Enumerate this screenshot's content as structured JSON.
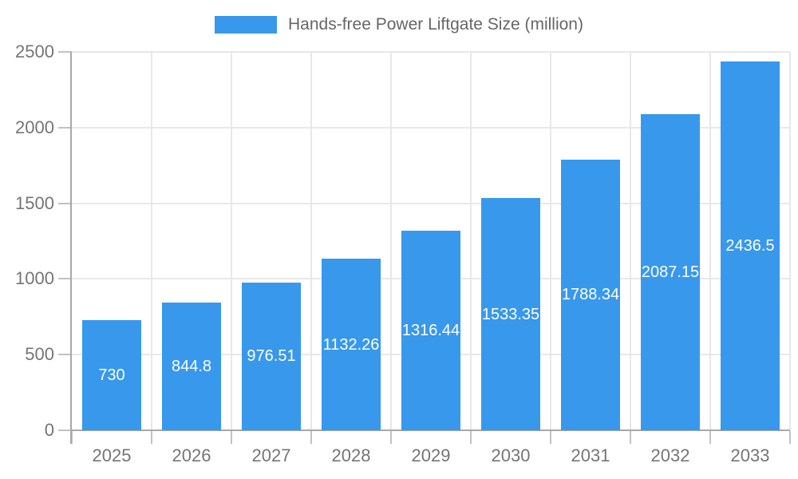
{
  "legend": {
    "label": "Hands-free Power Liftgate Size (million)"
  },
  "colors": {
    "background": "#ffffff",
    "bar": "#3898ec",
    "grid": "#e8e8e8",
    "tick": "#c2c2c2",
    "axis_line": "#a8a8a8",
    "axis_text": "#757575",
    "legend_text": "#666666",
    "bar_label_text": "#ffffff"
  },
  "chart_data": {
    "type": "bar",
    "title": "Hands-free Power Liftgate Size (million)",
    "series_name": "Hands-free Power Liftgate Size (million)",
    "categories": [
      "2025",
      "2026",
      "2027",
      "2028",
      "2029",
      "2030",
      "2031",
      "2032",
      "2033"
    ],
    "values": [
      730,
      844.8,
      976.51,
      1132.26,
      1316.44,
      1533.35,
      1788.34,
      2087.15,
      2436.5
    ],
    "bar_labels": [
      "730",
      "844.8",
      "976.51",
      "1132.26",
      "1316.44",
      "1533.35",
      "1788.34",
      "2087.15",
      "2436.5"
    ],
    "xlabel": "",
    "ylabel": "",
    "ylim": [
      0,
      2500
    ],
    "yticks": [
      0,
      500,
      1000,
      1500,
      2000,
      2500
    ],
    "ytick_labels": [
      "0",
      "500",
      "1000",
      "1500",
      "2000",
      "2500"
    ],
    "grid": true,
    "legend_position": "top",
    "data_labels": "inside-center-white"
  }
}
